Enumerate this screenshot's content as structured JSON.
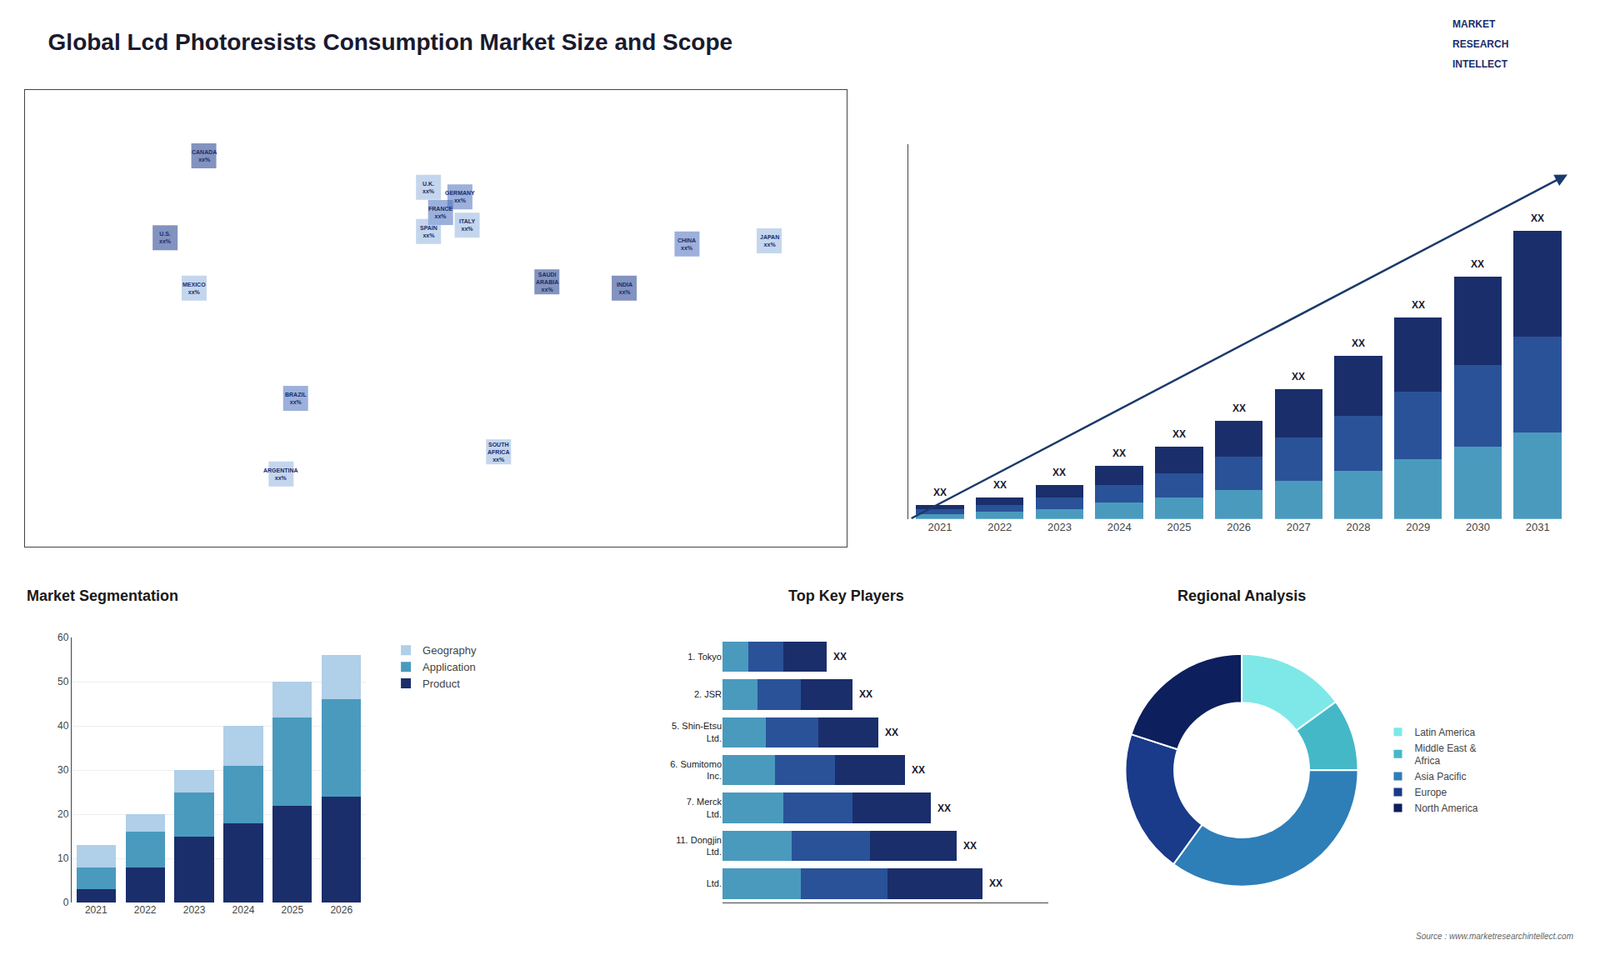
{
  "chart_data": [
    {
      "type": "scatter",
      "annotations": [
        {
          "text": "CANADA\nxx%",
          "x": -96,
          "y": 64
        },
        {
          "text": "U.S.\nxx%",
          "x": -112,
          "y": 38
        },
        {
          "text": "MEXICO\nxx%",
          "x": -100,
          "y": 22
        },
        {
          "text": "BRAZIL\nxx%",
          "x": -58,
          "y": -13
        },
        {
          "text": "ARGENTINA\nxx%",
          "x": -64,
          "y": -37
        },
        {
          "text": "U.K.\nxx%",
          "x": -3,
          "y": 54
        },
        {
          "text": "FRANCE\nxx%",
          "x": 2,
          "y": 46
        },
        {
          "text": "GERMANY\nxx%",
          "x": 10,
          "y": 51
        },
        {
          "text": "SPAIN\nxx%",
          "x": -3,
          "y": 40
        },
        {
          "text": "ITALY\nxx%",
          "x": 13,
          "y": 42
        },
        {
          "text": "SAUDI\nARABIA\nxx%",
          "x": 46,
          "y": 24
        },
        {
          "text": "CHINA\nxx%",
          "x": 104,
          "y": 36
        },
        {
          "text": "INDIA\nxx%",
          "x": 78,
          "y": 22
        },
        {
          "text": "JAPAN\nxx%",
          "x": 138,
          "y": 37
        },
        {
          "text": "SOUTH\nAFRICA\nxx%",
          "x": 26,
          "y": -30
        }
      ],
      "colors": [
        "#1e3a8a",
        "#1e3a8a",
        "#93b4df",
        "#4a6fbd",
        "#93b4df",
        "#93b4df",
        "#4a6fbd",
        "#4a6fbd",
        "#93b4df",
        "#93b4df",
        "#1e3a8a",
        "#4a6fbd",
        "#1e3a8a",
        "#93b4df",
        "#93b4df"
      ],
      "xlim": [
        -170,
        170
      ],
      "ylim": [
        -60,
        85
      ],
      "tick_labels": false,
      "grid": false
    },
    {
      "type": "bar",
      "title": "Global Lcd Photoresists Consumption Market Size and Scope",
      "annotations": [
        "MARKET",
        "RESEARCH",
        "INTELLECT"
      ],
      "categories": [
        "2021",
        "2022",
        "2023",
        "2024",
        "2025",
        "2026",
        "2027",
        "2028",
        "2029",
        "2030",
        "2031"
      ],
      "series": [
        {
          "color": "#4a9abe",
          "values": [
            2,
            3,
            4,
            7,
            9,
            12,
            16,
            20,
            25,
            30,
            36
          ]
        },
        {
          "color": "#2a5298",
          "values": [
            2,
            3,
            5,
            7,
            10,
            14,
            18,
            23,
            28,
            34,
            40
          ]
        },
        {
          "color": "#1a2e6b",
          "values": [
            2,
            3,
            5,
            8,
            11,
            15,
            20,
            25,
            31,
            37,
            44
          ],
          "value_labels": [
            "XX",
            "XX",
            "XX",
            "XX",
            "XX",
            "XX",
            "XX",
            "XX",
            "XX",
            "XX",
            "XX"
          ]
        }
      ],
      "stacked": true,
      "ylim": [
        0,
        156
      ],
      "tick_labels": "x",
      "grid": false
    },
    {
      "type": "bar",
      "title": "Market Segmentation",
      "categories": [
        "2021",
        "2022",
        "2023",
        "2024",
        "2025",
        "2026"
      ],
      "series": [
        {
          "name": "Product",
          "color": "#1a2e6b",
          "values": [
            3,
            8,
            15,
            18,
            22,
            24
          ]
        },
        {
          "name": "Application",
          "color": "#4a9abe",
          "values": [
            5,
            8,
            10,
            13,
            20,
            22
          ]
        },
        {
          "name": "Geography",
          "color": "#b0cfe8",
          "values": [
            5,
            4,
            5,
            9,
            8,
            10
          ]
        }
      ],
      "stacked": true,
      "ylim": [
        0,
        60
      ],
      "yticks": [
        0,
        10,
        20,
        30,
        40,
        50,
        60
      ],
      "grid": true,
      "legend": "right"
    },
    {
      "type": "bar",
      "title": "Top Key Players",
      "orientation": "horizontal",
      "categories": [
        "Ltd.",
        "11. Dongjin\nLtd.",
        "7. Merck\nLtd.",
        "6. Sumitomo\nInc.",
        "5. Shin-Etsu\nLtd.",
        "2. JSR",
        "1. Tokyo"
      ],
      "series": [
        {
          "color": "#4a9abe",
          "values": [
            9,
            8,
            7,
            6,
            5,
            4,
            3
          ]
        },
        {
          "color": "#2a5298",
          "values": [
            10,
            9,
            8,
            7,
            6,
            5,
            4
          ]
        },
        {
          "color": "#1a2e6b",
          "values": [
            11,
            10,
            9,
            8,
            7,
            6,
            5
          ],
          "value_labels": [
            "XX",
            "XX",
            "XX",
            "XX",
            "XX",
            "XX",
            "XX"
          ]
        }
      ],
      "stacked": true,
      "xlim": [
        0,
        37.5
      ],
      "tick_labels": "y",
      "grid": false
    },
    {
      "type": "pie",
      "title": "Regional Analysis",
      "categories": [
        "Latin America",
        "Middle East &\nAfrica",
        "Asia Pacific",
        "Europe",
        "North America"
      ],
      "values": [
        15,
        10,
        35,
        20,
        20
      ],
      "colors": [
        "#7ee8e8",
        "#45b8c8",
        "#2e7eb8",
        "#1a3a8a",
        "#0d1f5c"
      ],
      "legend": "right",
      "annotations": [
        "Source : www.marketresearchintellect.com"
      ]
    }
  ]
}
